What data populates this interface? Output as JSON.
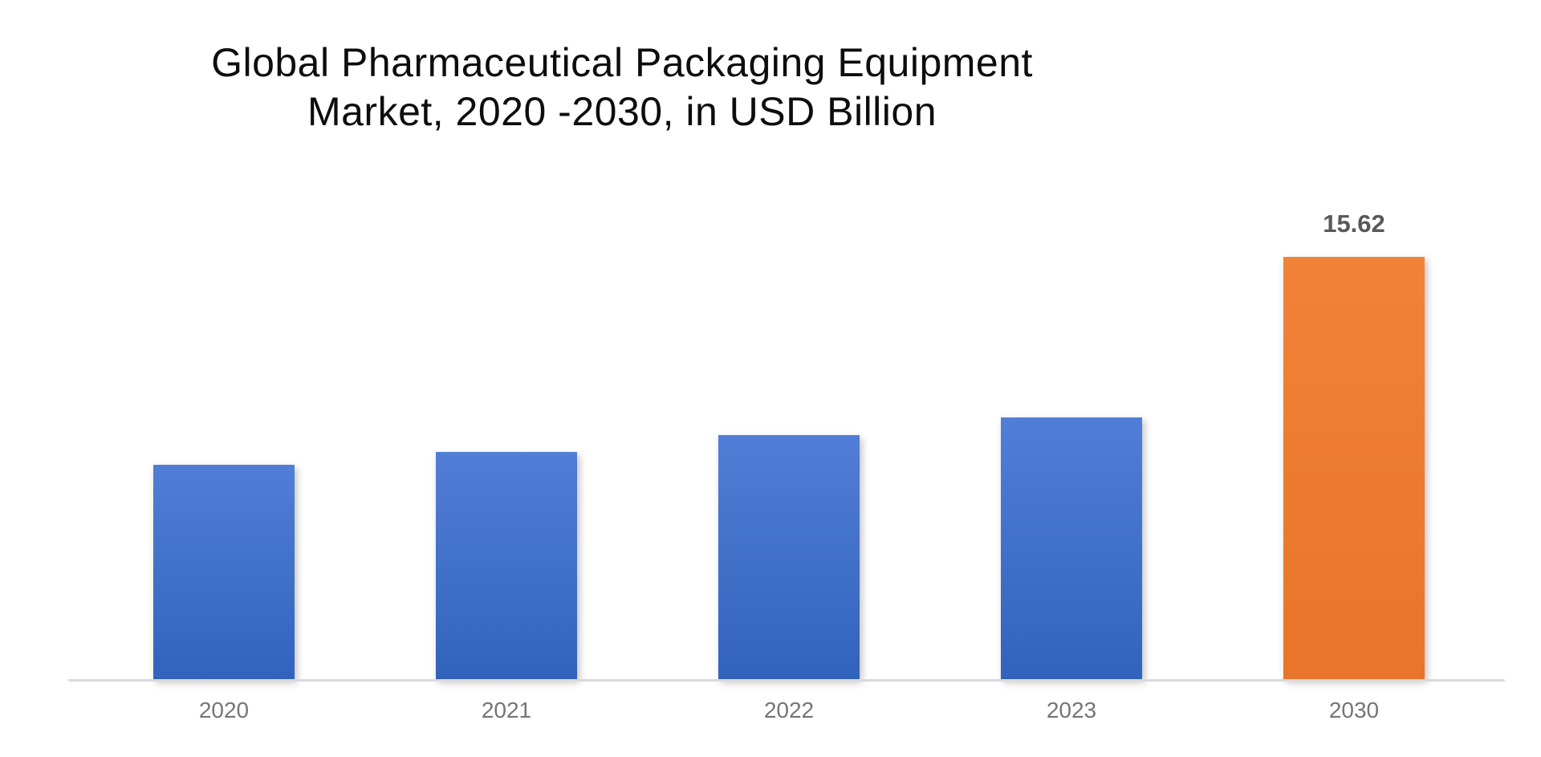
{
  "chart_data": {
    "type": "bar",
    "title": "Global Pharmaceutical Packaging Equipment Market, 2020 -2030, in USD Billion",
    "title_lines": [
      "Global Pharmaceutical Packaging Equipment",
      "Market, 2020 -2030, in USD Billion"
    ],
    "unit": "USD Billion",
    "categories": [
      "2020",
      "2021",
      "2022",
      "2023",
      "2030"
    ],
    "values": [
      7.93,
      8.4,
      9.03,
      9.68,
      15.62
    ],
    "data_labels": [
      "",
      "",
      "",
      "",
      "15.62"
    ],
    "bar_styles": [
      "blue",
      "blue",
      "blue",
      "blue",
      "orange"
    ],
    "ylim": [
      0,
      16.5
    ],
    "y_axis_visible": false,
    "grid": false,
    "legend": false
  },
  "colors": {
    "bar_blue": "#4472C4",
    "bar_blue_top": "#517ED6",
    "bar_blue_bottom": "#3263BC",
    "bar_orange": "#ED7D31",
    "bar_orange_top": "#F08338",
    "bar_orange_bottom": "#E9742B",
    "data_label": "#595959",
    "axis_label": "#757575",
    "axis_line": "#D9D9D9",
    "title": "#0D0D0D",
    "background": "#FFFFFF"
  }
}
